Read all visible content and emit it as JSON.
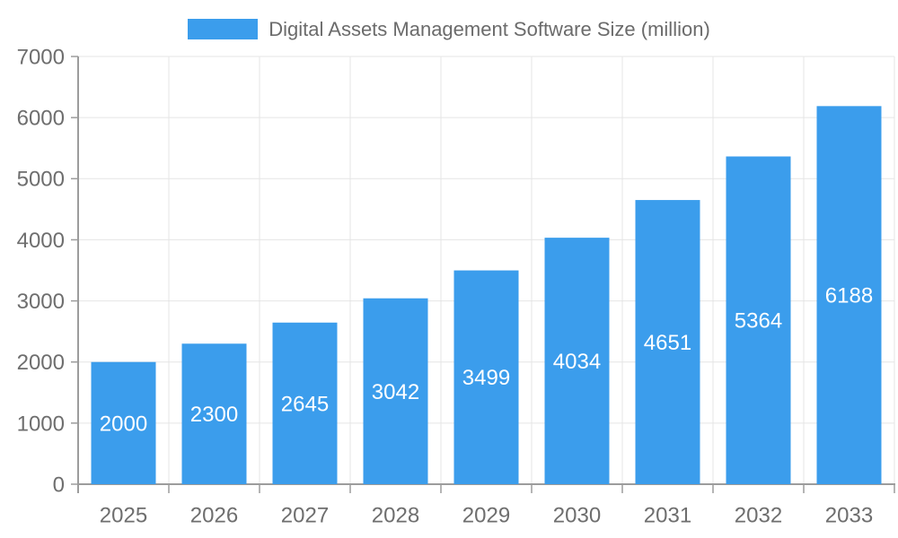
{
  "chart_data": {
    "type": "bar",
    "title": "Digital Assets Management Software Size (million)",
    "legend_entries": [
      "Digital Assets Management Software Size (million)"
    ],
    "legend_position": "top-center",
    "categories": [
      "2025",
      "2026",
      "2027",
      "2028",
      "2029",
      "2030",
      "2031",
      "2032",
      "2033"
    ],
    "values": [
      2000,
      2300,
      2645,
      3042,
      3499,
      4034,
      4651,
      5364,
      6188
    ],
    "xlabel": "",
    "ylabel": "",
    "ylim": [
      0,
      7000
    ],
    "y_ticks": [
      0,
      1000,
      2000,
      3000,
      4000,
      5000,
      6000,
      7000
    ],
    "grid": true,
    "bar_label_position": "inside-center",
    "colors": {
      "bar": "#3B9DEC",
      "bar_label": "#FFFFFF",
      "axis_text": "#6E6E6E",
      "legend_text": "#6B6B6B",
      "grid_line": "#E5E5E5",
      "axis_line": "#9C9C9C",
      "background": "#FFFFFF"
    }
  }
}
